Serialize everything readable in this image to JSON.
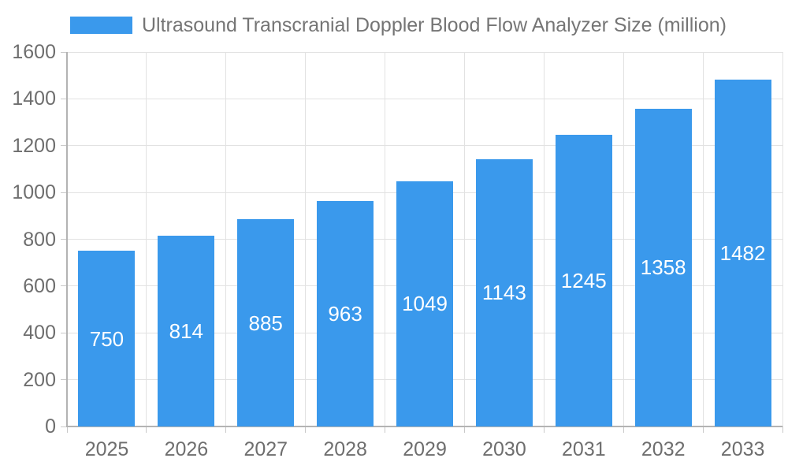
{
  "legend": {
    "label": "Ultrasound Transcranial Doppler Blood Flow Analyzer Size (million)"
  },
  "chart_data": {
    "type": "bar",
    "title": "Ultrasound Transcranial Doppler Blood Flow Analyzer Size (million)",
    "categories": [
      "2025",
      "2026",
      "2027",
      "2028",
      "2029",
      "2030",
      "2031",
      "2032",
      "2033"
    ],
    "values": [
      750,
      814,
      885,
      963,
      1049,
      1143,
      1245,
      1358,
      1482
    ],
    "xlabel": "",
    "ylabel": "",
    "ylim": [
      0,
      1600
    ],
    "ytick_step": 200,
    "ytick_labels": [
      "0",
      "200",
      "400",
      "600",
      "800",
      "1000",
      "1200",
      "1400",
      "1600"
    ],
    "grid": true,
    "legend_position": "top",
    "value_labels_position": "inside-center",
    "colors": {
      "bar": "#3a99ec",
      "value_label": "#ffffff",
      "axis_line": "#b3b3b3",
      "grid_line": "#e2e2e2",
      "tick_mark": "#c9c9c9",
      "axis_label": "#6e6e6e",
      "legend_text": "#757575",
      "background": "#ffffff"
    }
  }
}
